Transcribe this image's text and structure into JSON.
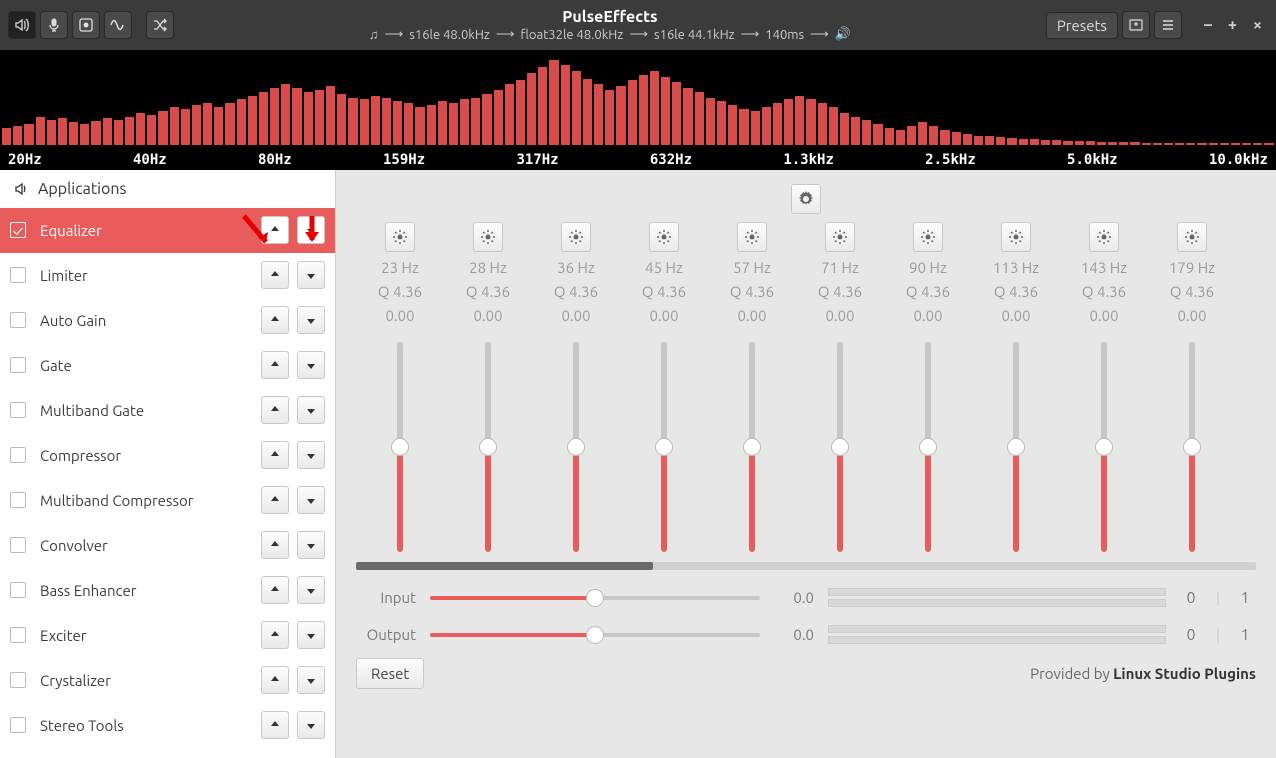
{
  "titlebar": {
    "app_title": "PulseEffects",
    "pipeline_parts": [
      "s16le 48.0kHz",
      "float32le 48.0kHz",
      "s16le 44.1kHz",
      "140ms"
    ],
    "presets_label": "Presets"
  },
  "spectrum": {
    "bar_color": "#d94c4c",
    "bg_color": "#000000",
    "label_color": "#ffffff",
    "heights_pct": [
      18,
      20,
      22,
      30,
      26,
      28,
      24,
      22,
      25,
      28,
      26,
      30,
      34,
      32,
      36,
      40,
      38,
      42,
      44,
      40,
      44,
      48,
      52,
      56,
      60,
      64,
      60,
      56,
      58,
      62,
      54,
      50,
      48,
      52,
      50,
      46,
      44,
      40,
      42,
      46,
      44,
      48,
      50,
      54,
      58,
      64,
      68,
      76,
      82,
      90,
      84,
      78,
      70,
      64,
      58,
      62,
      68,
      74,
      78,
      72,
      66,
      60,
      56,
      50,
      46,
      42,
      38,
      36,
      40,
      44,
      48,
      52,
      48,
      44,
      40,
      34,
      30,
      26,
      22,
      18,
      16,
      20,
      24,
      20,
      16,
      14,
      12,
      10,
      9,
      8,
      7,
      6,
      6,
      5,
      5,
      4,
      4,
      4,
      3,
      3,
      3,
      3,
      2,
      2,
      2,
      2,
      2,
      2,
      2,
      2,
      2,
      2,
      2,
      2
    ],
    "labels": [
      "20Hz",
      "40Hz",
      "80Hz",
      "159Hz",
      "317Hz",
      "632Hz",
      "1.3kHz",
      "2.5kHz",
      "5.0kHz",
      "10.0kHz"
    ]
  },
  "sidebar": {
    "header": "Applications",
    "items": [
      {
        "label": "Equalizer",
        "checked": true,
        "selected": true
      },
      {
        "label": "Limiter",
        "checked": false,
        "selected": false
      },
      {
        "label": "Auto Gain",
        "checked": false,
        "selected": false
      },
      {
        "label": "Gate",
        "checked": false,
        "selected": false
      },
      {
        "label": "Multiband Gate",
        "checked": false,
        "selected": false
      },
      {
        "label": "Compressor",
        "checked": false,
        "selected": false
      },
      {
        "label": "Multiband Compressor",
        "checked": false,
        "selected": false
      },
      {
        "label": "Convolver",
        "checked": false,
        "selected": false
      },
      {
        "label": "Bass Enhancer",
        "checked": false,
        "selected": false
      },
      {
        "label": "Exciter",
        "checked": false,
        "selected": false
      },
      {
        "label": "Crystalizer",
        "checked": false,
        "selected": false
      },
      {
        "label": "Stereo Tools",
        "checked": false,
        "selected": false
      }
    ],
    "annotation_arrows": true
  },
  "equalizer": {
    "bands": [
      {
        "freq": "23 Hz",
        "q": "Q 4.36",
        "gain": "0.00",
        "value_pct": 50
      },
      {
        "freq": "28 Hz",
        "q": "Q 4.36",
        "gain": "0.00",
        "value_pct": 50
      },
      {
        "freq": "36 Hz",
        "q": "Q 4.36",
        "gain": "0.00",
        "value_pct": 50
      },
      {
        "freq": "45 Hz",
        "q": "Q 4.36",
        "gain": "0.00",
        "value_pct": 50
      },
      {
        "freq": "57 Hz",
        "q": "Q 4.36",
        "gain": "0.00",
        "value_pct": 50
      },
      {
        "freq": "71 Hz",
        "q": "Q 4.36",
        "gain": "0.00",
        "value_pct": 50
      },
      {
        "freq": "90 Hz",
        "q": "Q 4.36",
        "gain": "0.00",
        "value_pct": 50
      },
      {
        "freq": "113 Hz",
        "q": "Q 4.36",
        "gain": "0.00",
        "value_pct": 50
      },
      {
        "freq": "143 Hz",
        "q": "Q 4.36",
        "gain": "0.00",
        "value_pct": 50
      },
      {
        "freq": "179 Hz",
        "q": "Q 4.36",
        "gain": "0.00",
        "value_pct": 50
      }
    ],
    "scroll_thumb_pct": 33,
    "io": [
      {
        "label": "Input",
        "value": "0.0",
        "pct": 50,
        "ch0": "0",
        "ch1": "1"
      },
      {
        "label": "Output",
        "value": "0.0",
        "pct": 50,
        "ch0": "0",
        "ch1": "1"
      }
    ],
    "reset_label": "Reset",
    "provided_prefix": "Provided by ",
    "provided_name": "Linux Studio Plugins"
  },
  "colors": {
    "accent": "#e95c5c",
    "titlebar": "#3b3b3b",
    "content_bg": "#e7e7e7",
    "sidebar_bg": "#ffffff",
    "muted_text": "#999999"
  }
}
